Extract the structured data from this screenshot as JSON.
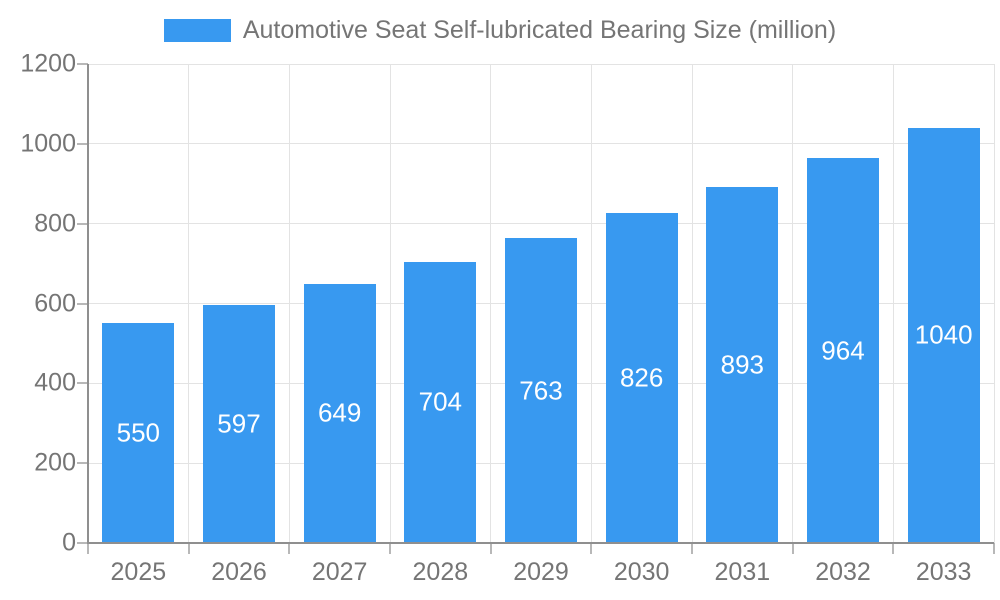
{
  "chart_data": {
    "type": "bar",
    "title": "Automotive Seat Self-lubricated Bearing Size (million)",
    "categories": [
      "2025",
      "2026",
      "2027",
      "2028",
      "2029",
      "2030",
      "2031",
      "2032",
      "2033"
    ],
    "values": [
      550,
      597,
      649,
      704,
      763,
      826,
      893,
      964,
      1040
    ],
    "value_labels": [
      "550",
      "597",
      "649",
      "704",
      "763",
      "826",
      "893",
      "964",
      "1040"
    ],
    "xlabel": "",
    "ylabel": "",
    "ylim": [
      0,
      1200
    ],
    "ytick_step": 200,
    "ytick_labels": [
      "0",
      "200",
      "400",
      "600",
      "800",
      "1000",
      "1200"
    ],
    "grid": "horizontal-and-vertical-boundaries",
    "legend_position": "top-center",
    "value_label_position": "center-of-bar",
    "colors": {
      "bar": "#3899f0",
      "grid": "#e3e3e3",
      "axis": "#8f8f8f",
      "tick": "#b8b8b8",
      "text": "#757575",
      "value_label": "#ffffff",
      "background": "#ffffff"
    }
  }
}
